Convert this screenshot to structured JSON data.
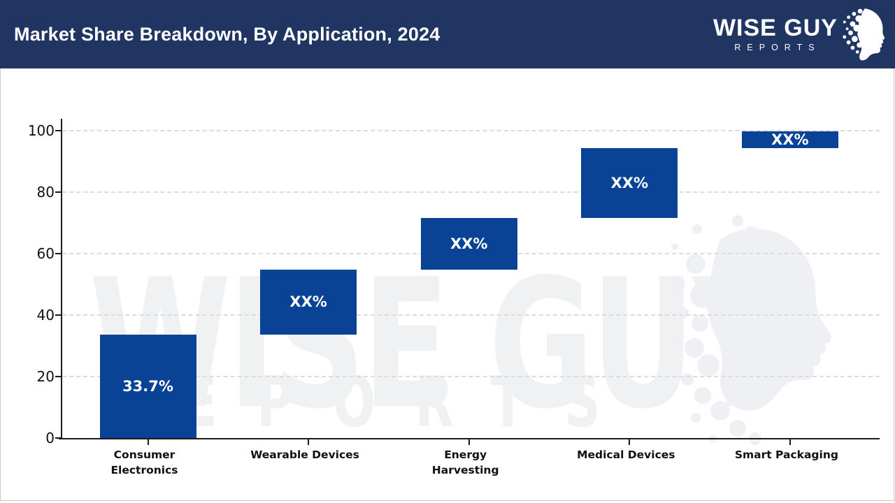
{
  "header": {
    "title": "Market Share Breakdown, By Application, 2024",
    "logo": {
      "line1": "WISE GUY",
      "line2": "REPORTS"
    }
  },
  "watermark": {
    "line1": "WISE GUY",
    "line2": "REPORTS"
  },
  "chart_data": {
    "type": "bar",
    "subtype": "waterfall-stacked-segments",
    "title": "Market Share Breakdown, By Application, 2024",
    "categories": [
      "Consumer Electronics",
      "Wearable Devices",
      "Energy Harvesting",
      "Medical Devices",
      "Smart Packaging"
    ],
    "segments": [
      [
        0,
        33.7
      ],
      [
        33.7,
        54.8
      ],
      [
        54.8,
        71.5
      ],
      [
        71.5,
        94.3
      ],
      [
        94.3,
        99.8
      ]
    ],
    "values": [
      33.7,
      21.1,
      16.7,
      22.8,
      5.5
    ],
    "bar_labels": [
      "33.7%",
      "XX%",
      "XX%",
      "XX%",
      "XX%"
    ],
    "yticks": [
      0,
      20,
      40,
      60,
      80,
      100
    ],
    "ylim": [
      0,
      104
    ],
    "xlabel": "",
    "ylabel": "",
    "grid": "horizontal-dashed",
    "legend": "none",
    "bar_color": "#0a4296",
    "label_color": "#ffffff",
    "axis_color": "#1a1a1a",
    "grid_color": "#dcdcdc"
  }
}
